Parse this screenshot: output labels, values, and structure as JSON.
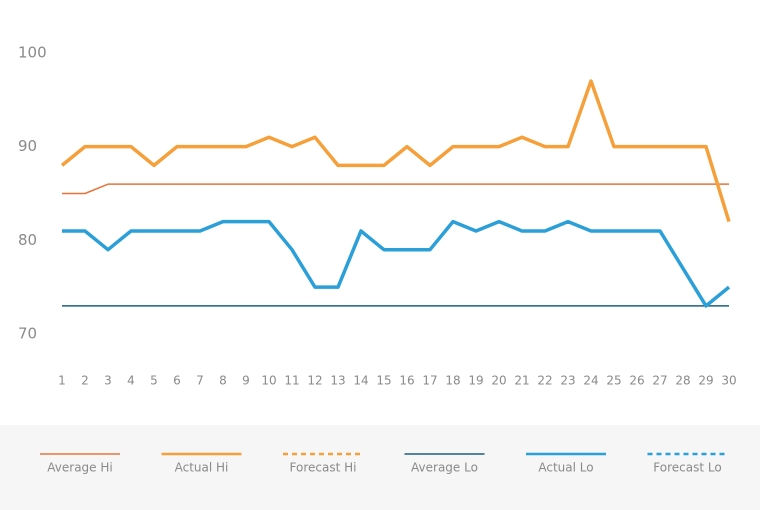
{
  "chart_data": {
    "type": "line",
    "x": [
      1,
      2,
      3,
      4,
      5,
      6,
      7,
      8,
      9,
      10,
      11,
      12,
      13,
      14,
      15,
      16,
      17,
      18,
      19,
      20,
      21,
      22,
      23,
      24,
      25,
      26,
      27,
      28,
      29,
      30
    ],
    "xlim": [
      1,
      30
    ],
    "xticks": [
      1,
      2,
      3,
      4,
      5,
      6,
      7,
      8,
      9,
      10,
      11,
      12,
      13,
      14,
      15,
      16,
      17,
      18,
      19,
      20,
      21,
      22,
      23,
      24,
      25,
      26,
      27,
      28,
      29,
      30
    ],
    "ylim": [
      65,
      102
    ],
    "yticks": [
      70,
      80,
      90,
      100
    ],
    "grid": false,
    "legend": "bottom",
    "series": [
      {
        "name": "Average Hi",
        "color": "#e8743b",
        "line_style": "thin",
        "values": [
          85,
          85,
          86,
          86,
          86,
          86,
          86,
          86,
          86,
          86,
          86,
          86,
          86,
          86,
          86,
          86,
          86,
          86,
          86,
          86,
          86,
          86,
          86,
          86,
          86,
          86,
          86,
          86,
          86,
          86
        ]
      },
      {
        "name": "Actual Hi",
        "color": "#f5a03a",
        "line_style": "thick",
        "values": [
          88,
          90,
          90,
          90,
          88,
          90,
          90,
          90,
          90,
          91,
          90,
          91,
          88,
          88,
          88,
          90,
          88,
          90,
          90,
          90,
          91,
          90,
          90,
          97,
          90,
          90,
          90,
          90,
          90,
          82
        ]
      },
      {
        "name": "Forecast Hi",
        "color": "#f5a03a",
        "line_style": "dotted",
        "values": [
          null,
          null,
          null,
          null,
          null,
          null,
          null,
          null,
          null,
          null,
          null,
          null,
          null,
          null,
          null,
          null,
          null,
          null,
          null,
          null,
          null,
          null,
          null,
          null,
          null,
          null,
          null,
          null,
          null,
          null
        ]
      },
      {
        "name": "Average Lo",
        "color": "#1f5f7f",
        "line_style": "thin",
        "values": [
          73,
          73,
          73,
          73,
          73,
          73,
          73,
          73,
          73,
          73,
          73,
          73,
          73,
          73,
          73,
          73,
          73,
          73,
          73,
          73,
          73,
          73,
          73,
          73,
          73,
          73,
          73,
          73,
          73,
          73
        ]
      },
      {
        "name": "Actual Lo",
        "color": "#2b9fd8",
        "line_style": "thick",
        "values": [
          81,
          81,
          79,
          81,
          81,
          81,
          81,
          82,
          82,
          82,
          79,
          75,
          75,
          81,
          79,
          79,
          79,
          82,
          81,
          82,
          81,
          81,
          82,
          81,
          81,
          81,
          81,
          77,
          73,
          75
        ]
      },
      {
        "name": "Forecast Lo",
        "color": "#2b9fd8",
        "line_style": "dotted",
        "values": [
          null,
          null,
          null,
          null,
          null,
          null,
          null,
          null,
          null,
          null,
          null,
          null,
          null,
          null,
          null,
          null,
          null,
          null,
          null,
          null,
          null,
          null,
          null,
          null,
          null,
          null,
          null,
          null,
          null,
          null
        ]
      }
    ]
  }
}
